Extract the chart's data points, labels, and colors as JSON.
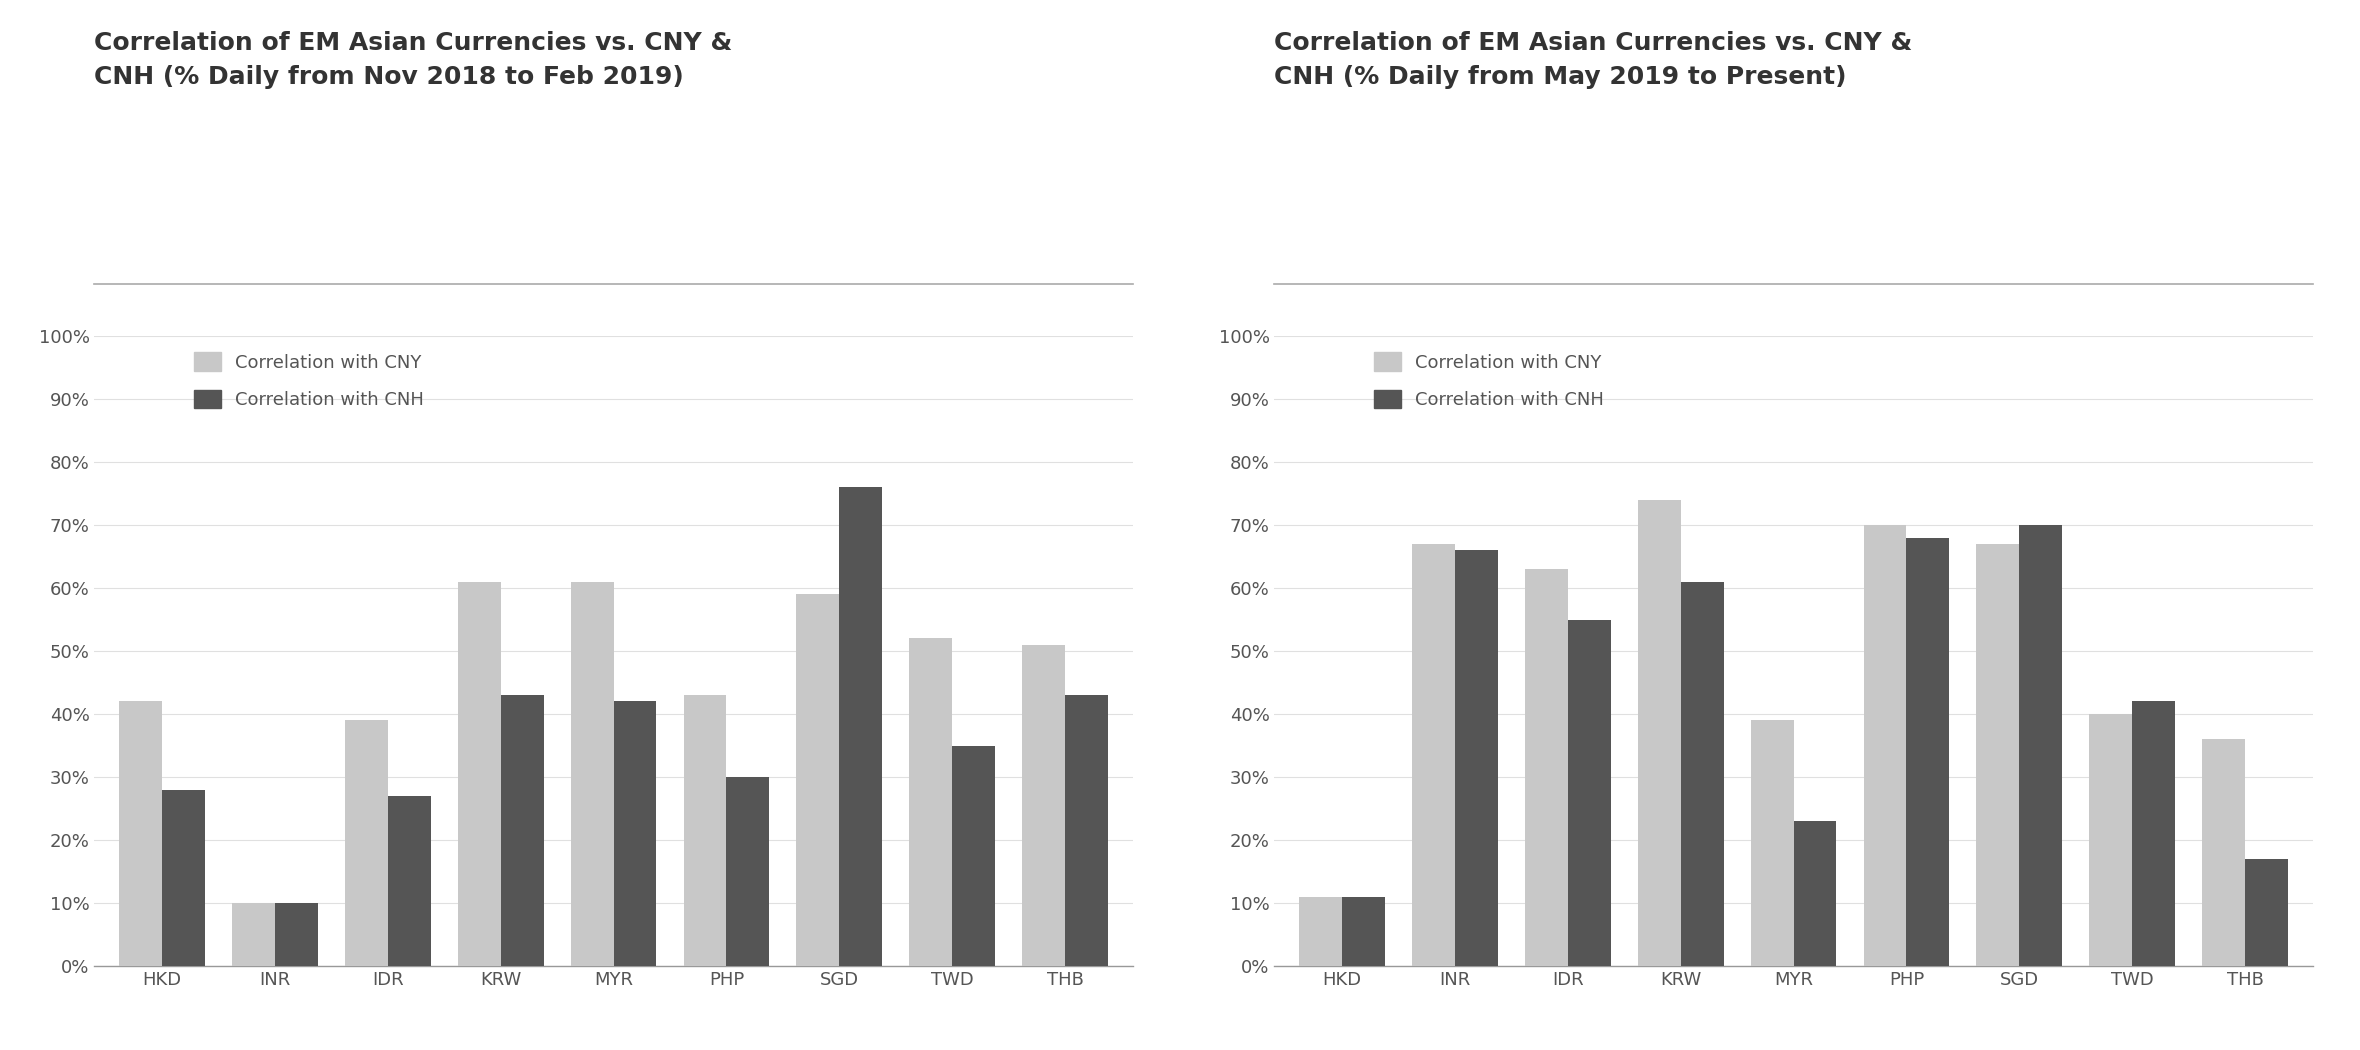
{
  "chart1": {
    "title": "Correlation of EM Asian Currencies vs. CNY &\nCNH (% Daily from Nov 2018 to Feb 2019)",
    "categories": [
      "HKD",
      "INR",
      "IDR",
      "KRW",
      "MYR",
      "PHP",
      "SGD",
      "TWD",
      "THB"
    ],
    "cny_values": [
      0.42,
      0.1,
      0.39,
      0.61,
      0.61,
      0.43,
      0.59,
      0.52,
      0.51
    ],
    "cnh_values": [
      0.28,
      0.1,
      0.27,
      0.43,
      0.42,
      0.3,
      0.76,
      0.35,
      0.43
    ]
  },
  "chart2": {
    "title": "Correlation of EM Asian Currencies vs. CNY &\nCNH (% Daily from May 2019 to Present)",
    "categories": [
      "HKD",
      "INR",
      "IDR",
      "KRW",
      "MYR",
      "PHP",
      "SGD",
      "TWD",
      "THB"
    ],
    "cny_values": [
      0.11,
      0.67,
      0.63,
      0.74,
      0.39,
      0.7,
      0.67,
      0.4,
      0.36
    ],
    "cnh_values": [
      0.11,
      0.66,
      0.55,
      0.61,
      0.23,
      0.68,
      0.7,
      0.42,
      0.17
    ]
  },
  "color_cny": "#c8c8c8",
  "color_cnh": "#555555",
  "legend_cny": "Correlation with CNY",
  "legend_cnh": "Correlation with CNH",
  "title_fontsize": 18,
  "label_fontsize": 13,
  "tick_fontsize": 13,
  "bar_width": 0.38,
  "background_color": "#ffffff",
  "title_color": "#333333",
  "axis_color": "#999999",
  "tick_label_color": "#555555",
  "grid_color": "#e0e0e0",
  "separator_color": "#aaaaaa"
}
